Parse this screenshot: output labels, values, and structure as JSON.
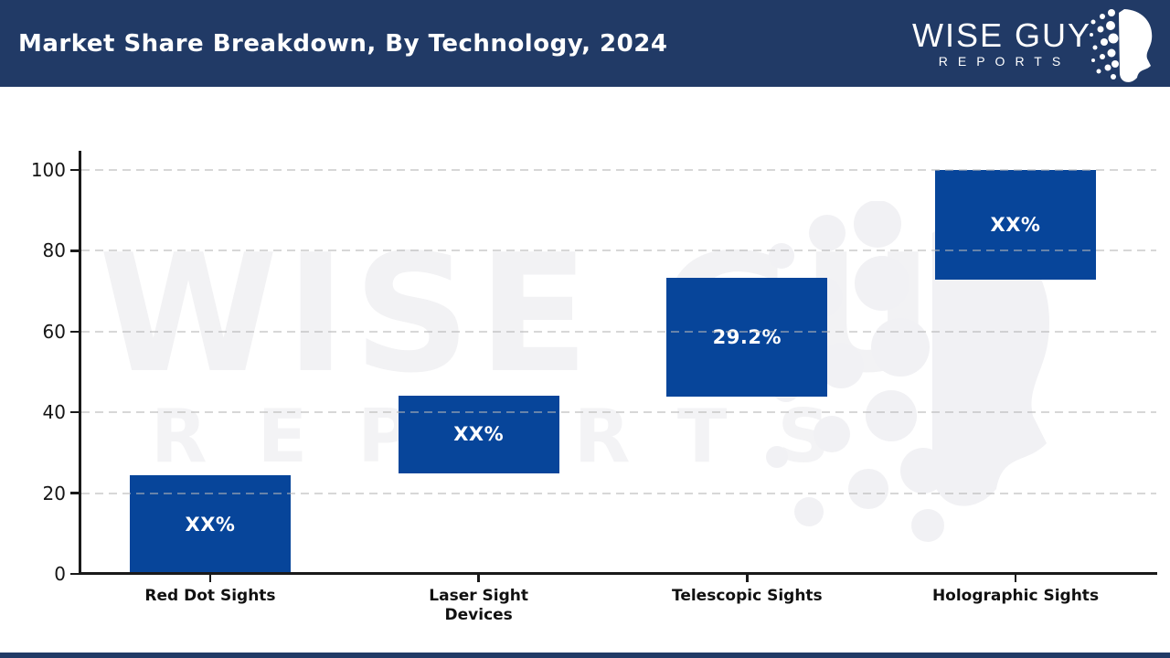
{
  "header": {
    "title": "Market Share Breakdown, By Technology, 2024",
    "bg_color": "#213a66",
    "logo": {
      "line1": "WISE GUY",
      "line2": "REPORTS"
    }
  },
  "watermark": {
    "line1": "WISE GU",
    "line2": "REPORTS"
  },
  "chart_data": {
    "type": "bar",
    "variant": "floating-waterfall",
    "title": "Market Share Breakdown, By Technology, 2024",
    "categories": [
      "Red Dot Sights",
      "Laser Sight Devices",
      "Telescopic Sights",
      "Holographic Sights"
    ],
    "category_labels": [
      "Red Dot Sights",
      "Laser Sight\nDevices",
      "Telescopic Sights",
      "Holographic Sights"
    ],
    "segments": [
      {
        "category": "Red Dot Sights",
        "start": 0,
        "end": 24.4,
        "size": 24.4,
        "label": "XX%"
      },
      {
        "category": "Laser Sight Devices",
        "start": 24.8,
        "end": 44.2,
        "size": 19.4,
        "label": "XX%"
      },
      {
        "category": "Telescopic Sights",
        "start": 44.0,
        "end": 73.2,
        "size": 29.2,
        "label": "29.2%"
      },
      {
        "category": "Holographic Sights",
        "start": 72.9,
        "end": 100,
        "size": 27.1,
        "label": "XX%"
      }
    ],
    "yticks": [
      0,
      20,
      40,
      60,
      80,
      100
    ],
    "ylim": [
      0,
      105
    ],
    "xlabel": "",
    "ylabel": "",
    "bar_color": "#07459a",
    "grid": "dashed-horizontal",
    "grid_color": "#d9d9d9",
    "legend": "none"
  },
  "colors": {
    "header_navy": "#213a66",
    "bar_blue": "#07459a",
    "watermark_gray": "#f2f2f4"
  }
}
